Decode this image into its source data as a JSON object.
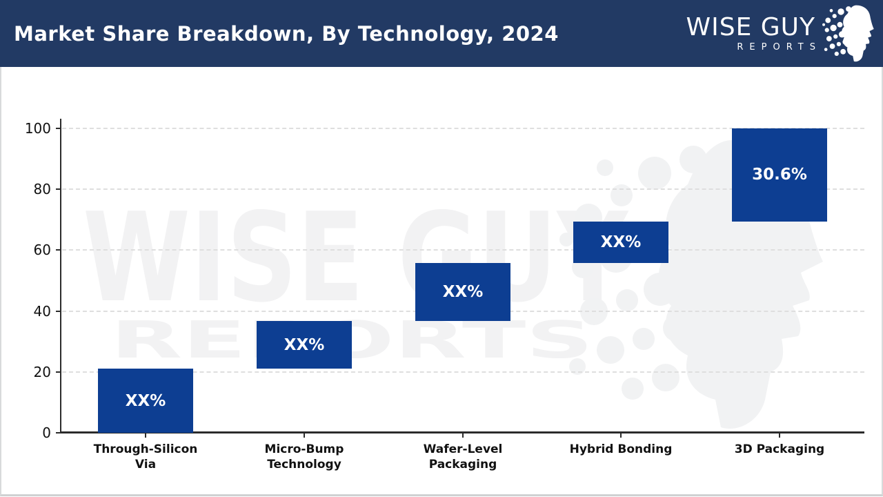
{
  "header": {
    "title": "Market Share Breakdown, By Technology, 2024",
    "bg_color": "#223a64",
    "text_color": "#ffffff"
  },
  "logo": {
    "line1": "WISE GUY",
    "line2": "REPORTS"
  },
  "watermark": {
    "line1": "WISE GUY",
    "line2": "R E P O R T S"
  },
  "chart_data": {
    "type": "bar",
    "variant": "waterfall",
    "title": "Market Share Breakdown, By Technology, 2024",
    "categories": [
      "Through-Silicon\nVia",
      "Micro-Bump\nTechnology",
      "Wafer-Level\nPackaging",
      "Hybrid Bonding",
      "3D Packaging"
    ],
    "segments": [
      {
        "start": 0,
        "end": 21.0
      },
      {
        "start": 21.0,
        "end": 36.7
      },
      {
        "start": 36.7,
        "end": 55.8
      },
      {
        "start": 55.8,
        "end": 69.4
      },
      {
        "start": 69.4,
        "end": 100.0
      }
    ],
    "values": [
      21.0,
      15.7,
      19.1,
      13.6,
      30.6
    ],
    "bar_labels": [
      "XX%",
      "XX%",
      "XX%",
      "XX%",
      "30.6%"
    ],
    "ylim": [
      0,
      100
    ],
    "yticks": [
      0,
      20,
      40,
      60,
      80,
      100
    ],
    "grid": {
      "axis": "y",
      "style": "dashed",
      "color": "#dedede"
    },
    "legend": "none",
    "bar_color": "#0d3e92",
    "bar_label_color": "#ffffff",
    "axis_color": "#2b2b2b",
    "tick_label_color": "#111111"
  }
}
